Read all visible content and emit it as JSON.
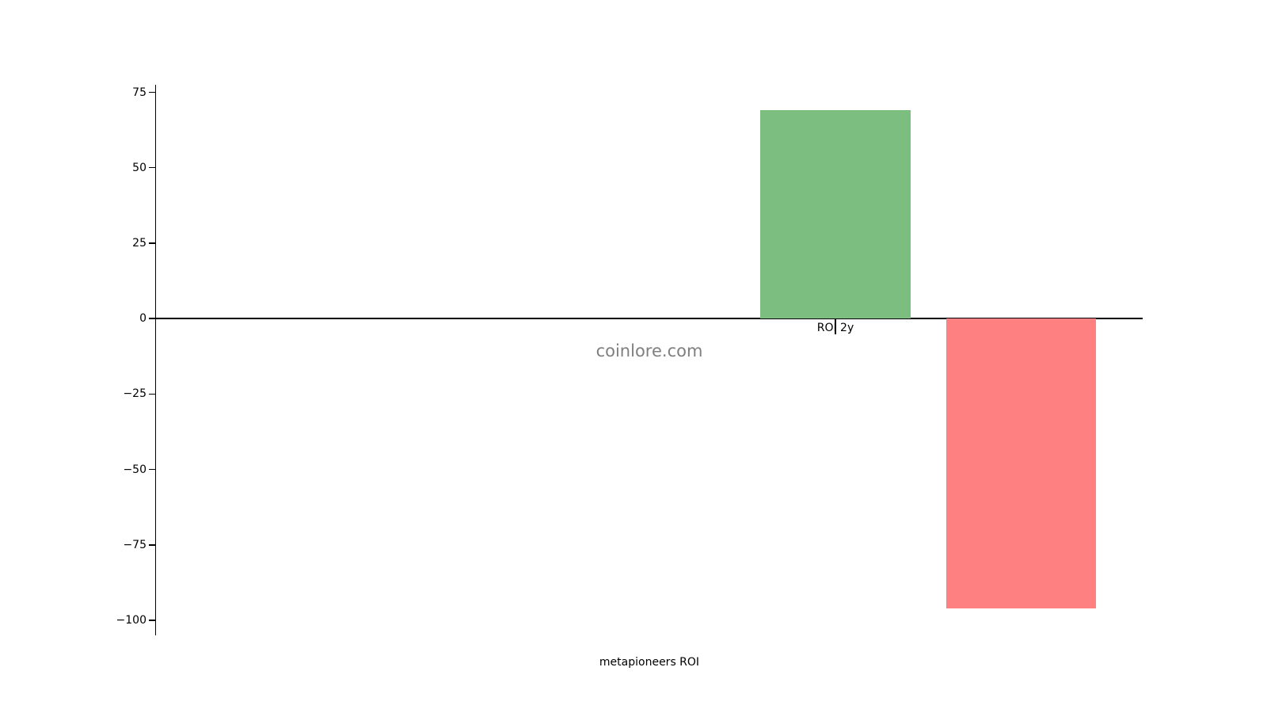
{
  "chart_data": {
    "type": "bar",
    "title": "metapioneers ROI",
    "watermark": "coinlore.com",
    "categories": [
      "ROI 2y",
      ""
    ],
    "series": [
      {
        "name": "ROI",
        "values": [
          69,
          -96
        ]
      }
    ],
    "bar_colors": [
      "#7bbe7f",
      "#ff8080"
    ],
    "yticks": [
      75,
      50,
      25,
      0,
      -25,
      -50,
      -75,
      -100
    ],
    "ylim": [
      -105,
      77.5
    ],
    "xlabel": "",
    "ylabel": "",
    "grid": false,
    "legend_position": "none",
    "baseline": 0,
    "layout": {
      "bar_centers_frac": [
        0.6886,
        0.8772
      ],
      "bar_width_frac": 0.1517,
      "labeled_tick_index": 0
    }
  }
}
